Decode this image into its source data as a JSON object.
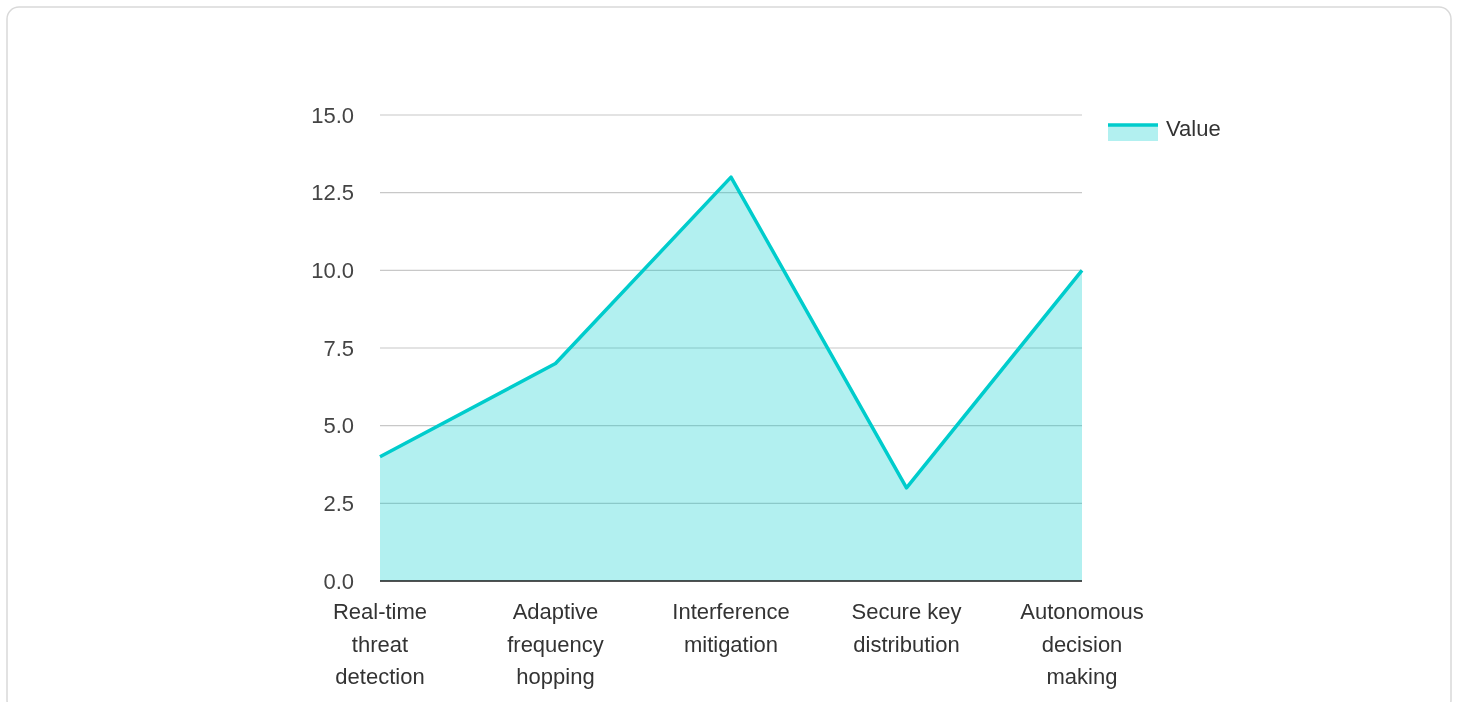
{
  "chart_data": {
    "type": "area",
    "categories": [
      "Real-time threat detection",
      "Adaptive frequency hopping",
      "Interference mitigation",
      "Secure key distribution",
      "Autonomous decision making"
    ],
    "series": [
      {
        "name": "Value",
        "color": "#00cccc",
        "values": [
          4,
          7,
          13,
          3,
          10
        ]
      }
    ],
    "ylim": [
      0,
      15
    ],
    "yticks": [
      {
        "value": 0,
        "label": "0.0"
      },
      {
        "value": 2.5,
        "label": "2.5"
      },
      {
        "value": 5,
        "label": "5.0"
      },
      {
        "value": 7.5,
        "label": "7.5"
      },
      {
        "value": 10,
        "label": "10.0"
      },
      {
        "value": 12.5,
        "label": "12.5"
      },
      {
        "value": 15,
        "label": "15.0"
      }
    ],
    "grid": "y",
    "legend": "top right"
  }
}
